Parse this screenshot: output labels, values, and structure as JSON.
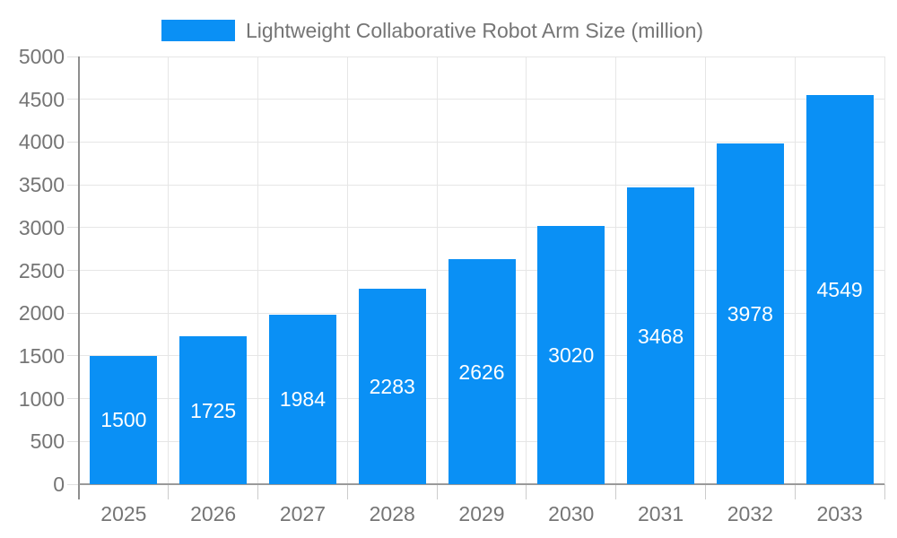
{
  "legend": {
    "label": "Lightweight Collaborative Robot Arm Size (million)"
  },
  "chart_data": {
    "type": "bar",
    "title": "Lightweight Collaborative Robot Arm Size (million)",
    "categories": [
      "2025",
      "2026",
      "2027",
      "2028",
      "2029",
      "2030",
      "2031",
      "2032",
      "2033"
    ],
    "values": [
      1500,
      1725,
      1984,
      2283,
      2626,
      3020,
      3468,
      3978,
      4549
    ],
    "xlabel": "",
    "ylabel": "",
    "ylim": [
      0,
      5000
    ],
    "ytick_interval": 500,
    "grid": true,
    "legend_position": "top",
    "bar_color": "#0a90f5",
    "value_label_color": "#ffffff",
    "axis_label_color": "#757575",
    "gridline_color": "#e6e6e6",
    "axis_line_color": "#8e8e8e",
    "background_color": "#ffffff"
  }
}
